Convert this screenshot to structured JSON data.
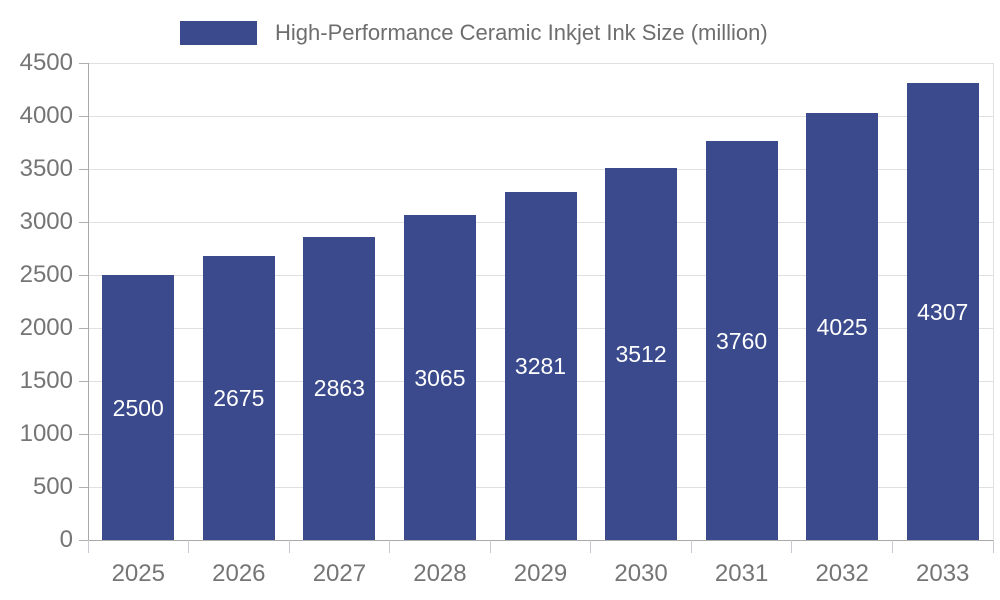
{
  "legend": {
    "label": "High-Performance Ceramic Inkjet Ink Size (million)"
  },
  "chart_data": {
    "type": "bar",
    "title": "High-Performance Ceramic Inkjet Ink Size (million)",
    "categories": [
      "2025",
      "2026",
      "2027",
      "2028",
      "2029",
      "2030",
      "2031",
      "2032",
      "2033"
    ],
    "series": [
      {
        "name": "High-Performance Ceramic Inkjet Ink Size (million)",
        "values": [
          2500,
          2675,
          2863,
          3065,
          3281,
          3512,
          3760,
          4025,
          4307
        ]
      }
    ],
    "xlabel": "",
    "ylabel": "",
    "ylim": [
      0,
      4500
    ],
    "ytick_interval": 500,
    "yticks": [
      0,
      500,
      1000,
      1500,
      2000,
      2500,
      3000,
      3500,
      4000,
      4500
    ],
    "grid": true,
    "legend_position": "top",
    "value_label_position": "inside-center",
    "colors": {
      "bar": "#3A4A8C",
      "value_label": "#FFFFFF",
      "grid": "#E0E0E0",
      "axis": "#A9A9A9",
      "x_tick": "#C9C9D1",
      "y_tick": "#B0B0B0",
      "tick_label": "#757575",
      "legend_text": "#6E6E6E",
      "background": "#FFFFFF"
    }
  }
}
